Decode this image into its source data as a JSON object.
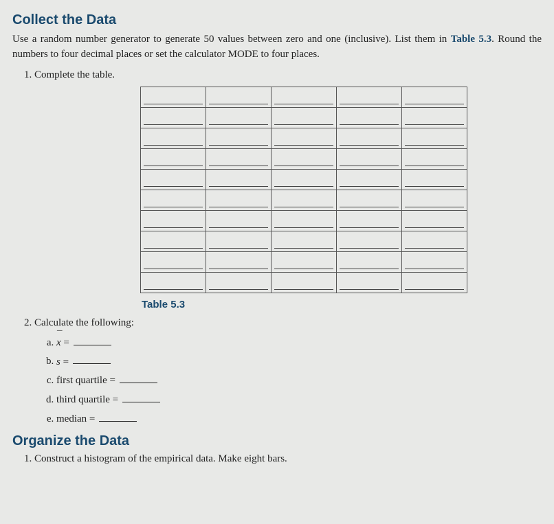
{
  "collect": {
    "heading": "Collect the Data",
    "intro_before": "Use a random number generator to generate 50 values between zero and one (inclusive). List them in ",
    "table_ref": "Table 5.3",
    "intro_after": ". Round the numbers to four decimal places or set the calculator MODE to four places.",
    "item1": "Complete the table.",
    "table_caption": "Table 5.3",
    "table_rows": 10,
    "table_cols": 5,
    "item2": "Calculate the following:",
    "calc_a_prefix": "x",
    "calc_a_eq": " =",
    "calc_b_prefix": "s",
    "calc_b_eq": " = ",
    "calc_c": "first quartile = ",
    "calc_d": "third quartile = ",
    "calc_e": "median = "
  },
  "organize": {
    "heading": "Organize the Data",
    "item1": "Construct a histogram of the empirical data. Make eight bars."
  },
  "style": {
    "heading_color": "#1a4a6e",
    "background_color": "#e8e9e7",
    "text_color": "#222222",
    "border_color": "#555555",
    "body_font": "Georgia, serif",
    "heading_font": "Arial, sans-serif",
    "heading_fontsize_pt": 15,
    "body_fontsize_pt": 11
  }
}
